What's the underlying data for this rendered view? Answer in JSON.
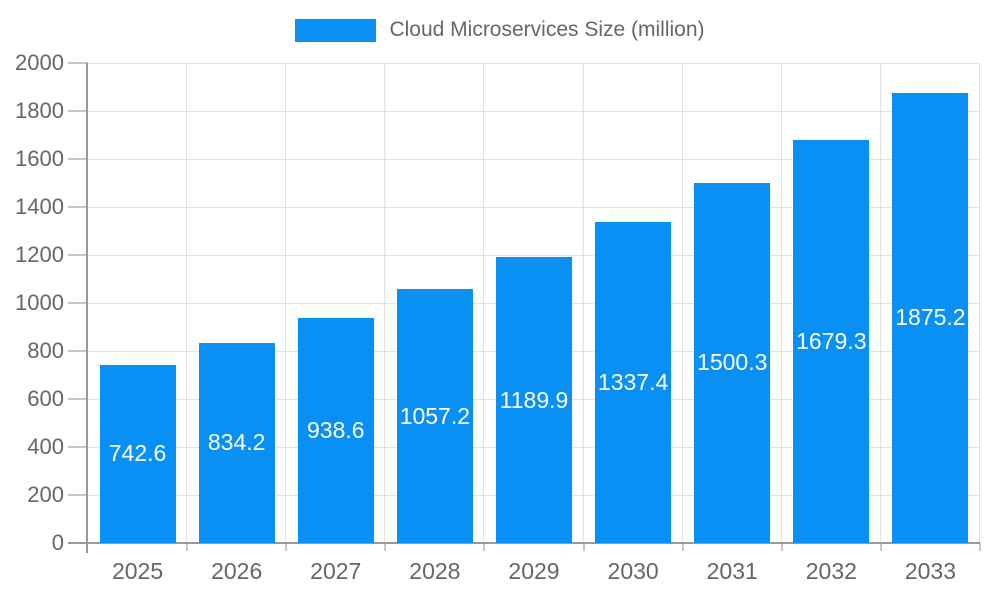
{
  "chart_data": {
    "type": "bar",
    "title": "Cloud Microservices Size (million)",
    "categories": [
      "2025",
      "2026",
      "2027",
      "2028",
      "2029",
      "2030",
      "2031",
      "2032",
      "2033"
    ],
    "values": [
      742.6,
      834.2,
      938.6,
      1057.2,
      1189.9,
      1337.4,
      1500.3,
      1679.3,
      1875.2
    ],
    "series_name": "Cloud Microservices Size (million)",
    "xlabel": "",
    "ylabel": "",
    "ylim": [
      0,
      2000
    ],
    "ytick_step": 200,
    "yticks": [
      0,
      200,
      400,
      600,
      800,
      1000,
      1200,
      1400,
      1600,
      1800,
      2000
    ],
    "legend_position": "top",
    "grid": true,
    "bar_labels_inside": true,
    "colors": {
      "bar": "#0990F5",
      "bar_label": "#FFFFFF",
      "axis_text": "#666666",
      "legend_text": "#666666",
      "grid_line": "#E2E2E2",
      "tick_line": "#C6C6C6",
      "axis_line": "#999999",
      "background": "#FFFFFF"
    }
  }
}
